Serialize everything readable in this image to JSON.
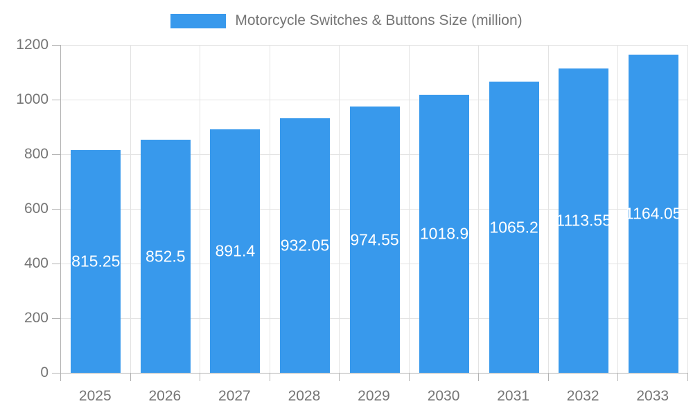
{
  "legend": {
    "label": "Motorcycle Switches & Buttons Size (million)"
  },
  "colors": {
    "bar": "#3899EC",
    "gridline": "#e3e3e3",
    "axis": "#b3b3b3",
    "tick_text": "#757575",
    "bar_label_text": "#ffffff",
    "background": "#ffffff"
  },
  "chart_data": {
    "type": "bar",
    "title": "Motorcycle Switches & Buttons Size (million)",
    "categories": [
      "2025",
      "2026",
      "2027",
      "2028",
      "2029",
      "2030",
      "2031",
      "2032",
      "2033"
    ],
    "values": [
      815.25,
      852.5,
      891.4,
      932.05,
      974.55,
      1018.9,
      1065.2,
      1113.55,
      1164.05
    ],
    "xlabel": "",
    "ylabel": "",
    "ylim": [
      0,
      1200
    ],
    "yticks": [
      0,
      200,
      400,
      600,
      800,
      1000,
      1200
    ],
    "grid": true,
    "legend_position": "top",
    "value_labels": "inside-bar-centered"
  }
}
